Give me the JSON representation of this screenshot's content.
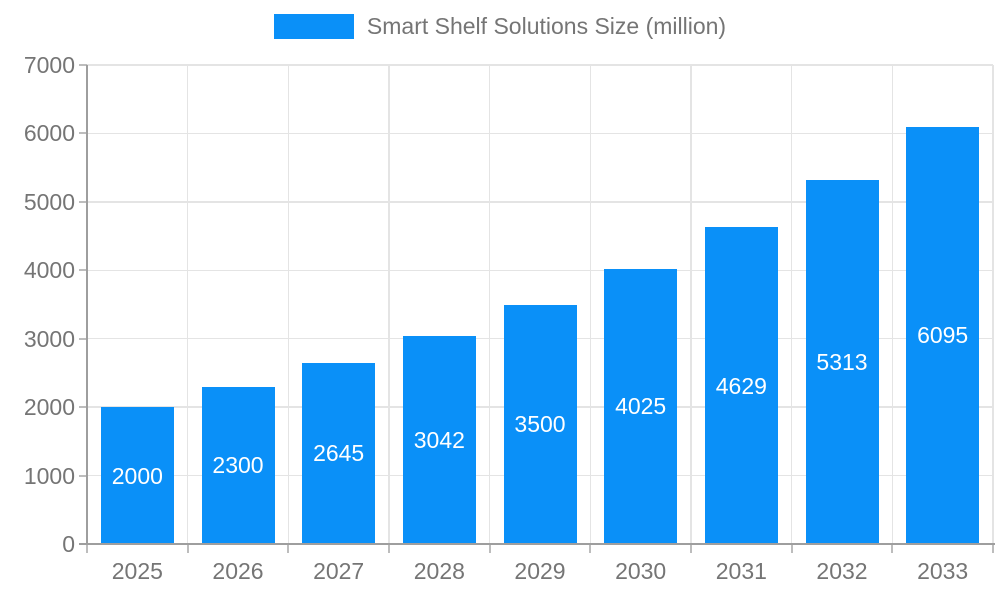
{
  "chart_data": {
    "type": "bar",
    "title": "Smart Shelf Solutions Size (million)",
    "legend": {
      "label": "Smart Shelf Solutions Size (million)",
      "position": "top-center"
    },
    "categories": [
      "2025",
      "2026",
      "2027",
      "2028",
      "2029",
      "2030",
      "2031",
      "2032",
      "2033"
    ],
    "series": [
      {
        "name": "Smart Shelf Solutions Size (million)",
        "values": [
          2000,
          2300,
          2645,
          3042,
          3500,
          4025,
          4629,
          5313,
          6095
        ]
      }
    ],
    "xlabel": "",
    "ylabel": "",
    "ylim": [
      0,
      7000
    ],
    "yticks": [
      0,
      1000,
      2000,
      3000,
      4000,
      5000,
      6000,
      7000
    ],
    "grid": true,
    "bar_labels_inside": true
  },
  "colors": {
    "bar": "#0a90f8",
    "bar_label": "#ffffff",
    "axis_text": "#757575",
    "legend_text": "#757575",
    "grid_line": "#e4e4e4",
    "axis_line": "#9e9e9e",
    "tick_line": "#bdbdbd",
    "background": "#ffffff"
  }
}
